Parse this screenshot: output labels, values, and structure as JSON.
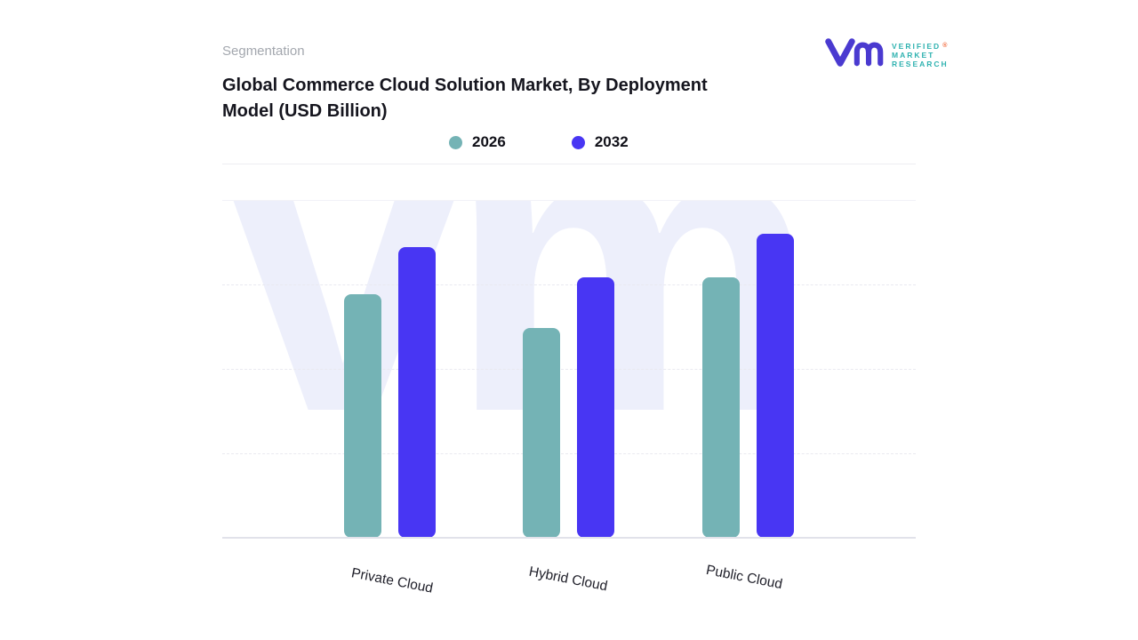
{
  "header": {
    "eyebrow": "Segmentation",
    "title_line1": "Global Commerce Cloud Solution Market, By Deployment",
    "title_line2": "Model (USD Billion)"
  },
  "logo": {
    "brand_lines": [
      "VERIFIED",
      "MARKET",
      "RESEARCH"
    ],
    "registered_mark": "®",
    "mark_color": "#4a3ad0",
    "text_color": "#2fb2b0"
  },
  "legend": [
    {
      "label": "2026",
      "color": "#74b3b5"
    },
    {
      "label": "2032",
      "color": "#4836f3"
    }
  ],
  "watermark": {
    "text": "vm",
    "color": "#edeffb"
  },
  "chart_data": {
    "type": "bar",
    "title": "Global Commerce Cloud Solution Market, By Deployment Model (USD Billion)",
    "categories": [
      "Private Cloud",
      "Hybrid Cloud",
      "Public Cloud"
    ],
    "series": [
      {
        "name": "2026",
        "color": "#74b3b5",
        "values": [
          72,
          62,
          77
        ]
      },
      {
        "name": "2032",
        "color": "#4836f3",
        "values": [
          86,
          77,
          90
        ]
      }
    ],
    "xlabel": "",
    "ylabel": "",
    "units": "USD Billion",
    "value_axis_labels_visible": false,
    "ylim": [
      0,
      100
    ],
    "grid": "dashed-horizontal",
    "legend_position": "top"
  }
}
